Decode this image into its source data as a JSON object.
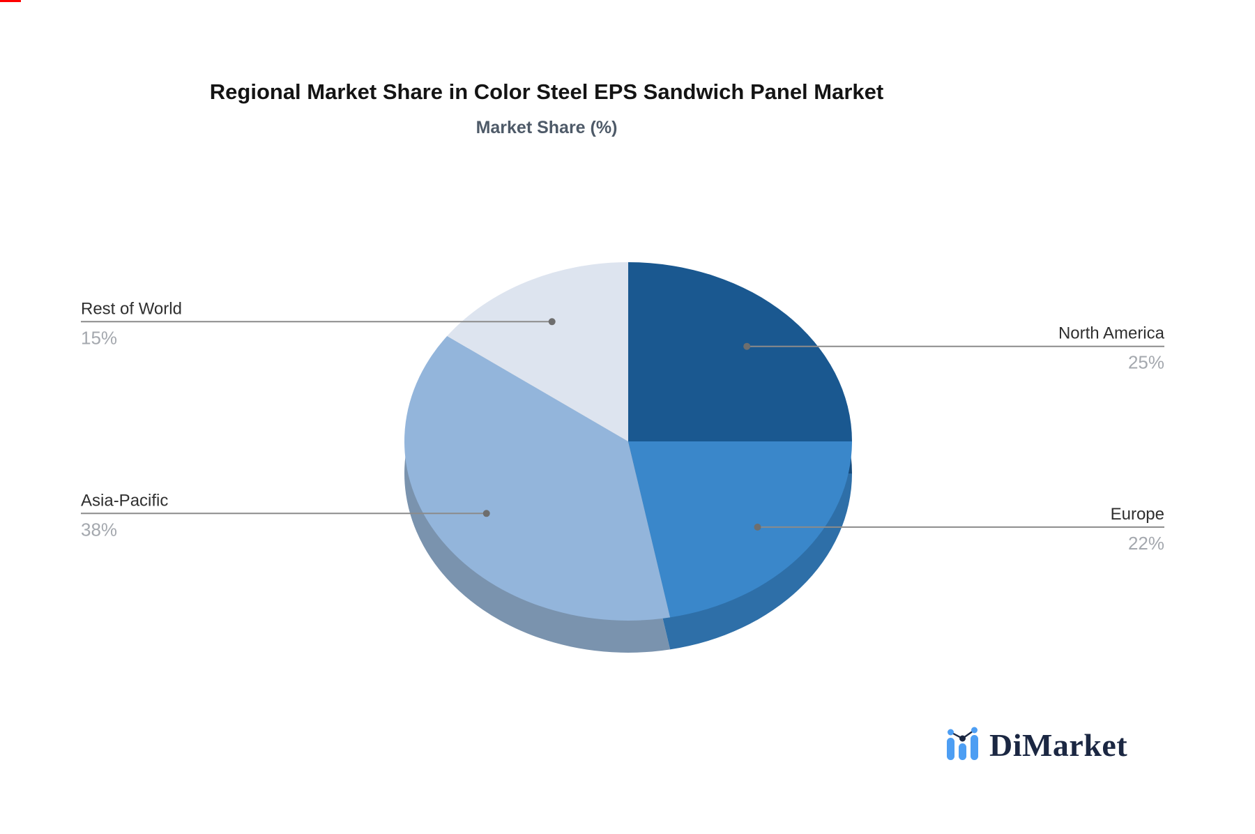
{
  "header": {
    "title": "Regional Market Share in Color Steel EPS Sandwich Panel Market",
    "subtitle": "Market Share (%)"
  },
  "chart_data": {
    "type": "pie",
    "title": "Regional Market Share in Color Steel EPS Sandwich Panel Market",
    "subtitle": "Market Share (%)",
    "unit": "%",
    "style": "3d-pie with leader-line labels, no legend",
    "start_angle": "12 o'clock, clockwise",
    "slices": [
      {
        "label": "North America",
        "value": 25,
        "display": "25%",
        "color": "#1A5890",
        "depth_color": "#164B7C",
        "label_side": "right"
      },
      {
        "label": "Europe",
        "value": 22,
        "display": "22%",
        "color": "#3A87CA",
        "depth_color": "#2E6FA8",
        "label_side": "right"
      },
      {
        "label": "Asia-Pacific",
        "value": 38,
        "display": "38%",
        "color": "#93B5DB",
        "depth_color": "#7A93AE",
        "label_side": "left"
      },
      {
        "label": "Rest of World",
        "value": 15,
        "display": "15%",
        "color": "#DDE4EF",
        "depth_color": "#B9C3D2",
        "label_side": "left"
      }
    ]
  },
  "branding": {
    "logo_text": "DiMarket"
  },
  "colors": {
    "title_text": "#141414",
    "subtitle_text": "#4E5A68",
    "label_text": "#2F2F2F",
    "percent_text": "#A4A8AE",
    "leader_line": "#8B8B8B",
    "leader_dot": "#6E6E6E",
    "logo_text": "#1B2742",
    "logo_bar": "#4D9EF3",
    "artifact_red": "#FE0000"
  }
}
